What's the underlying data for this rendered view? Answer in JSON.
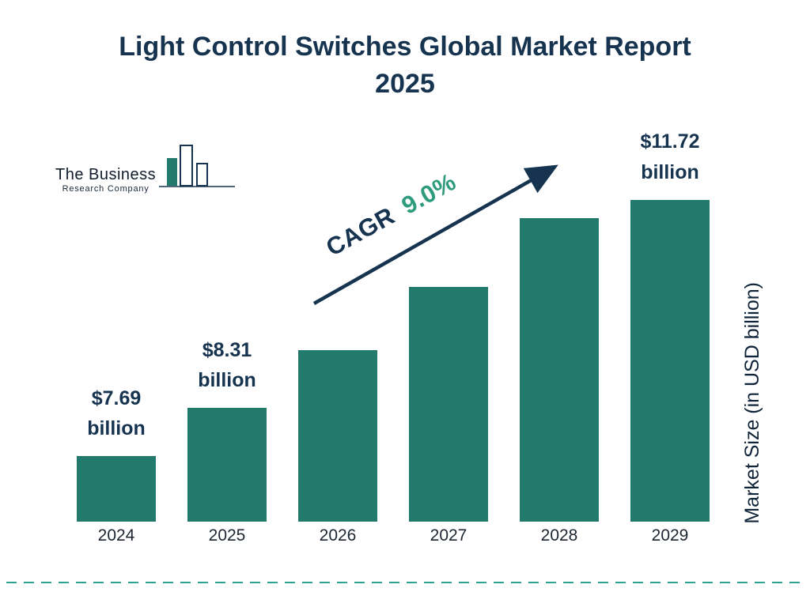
{
  "page": {
    "background": "#ffffff"
  },
  "title": {
    "text": "Light Control Switches Global Market Report 2025",
    "line1": "Light Control Switches Global Market Report",
    "line2": "2025"
  },
  "logo": {
    "line1": "The Business",
    "line2": "Research Company"
  },
  "cagr": {
    "label": "CAGR",
    "value": "9.0%"
  },
  "ylabel": "Market Size (in USD billion)",
  "colors": {
    "bar": "#217A6B",
    "navy": "#16334F",
    "cagr_green": "#2E9C7C",
    "dashed_line": "#2BA390"
  },
  "chart_data": {
    "type": "bar",
    "title": "Light Control Switches Global Market Report 2025",
    "categories": [
      "2024",
      "2025",
      "2026",
      "2027",
      "2028",
      "2029"
    ],
    "values": [
      7.69,
      8.31,
      9.06,
      9.87,
      10.76,
      11.72
    ],
    "labels": [
      {
        "amount": "$7.69",
        "unit": "billion"
      },
      {
        "amount": "$8.31",
        "unit": "billion"
      },
      null,
      null,
      null,
      {
        "amount": "$11.72",
        "unit": "billion"
      }
    ],
    "xlabel": "",
    "ylabel": "Market Size (in USD billion)",
    "annotation": "CAGR 9.0%",
    "bar_color": "#217A6B",
    "ylim": [
      0,
      12
    ],
    "grid": false,
    "legend": "none"
  }
}
